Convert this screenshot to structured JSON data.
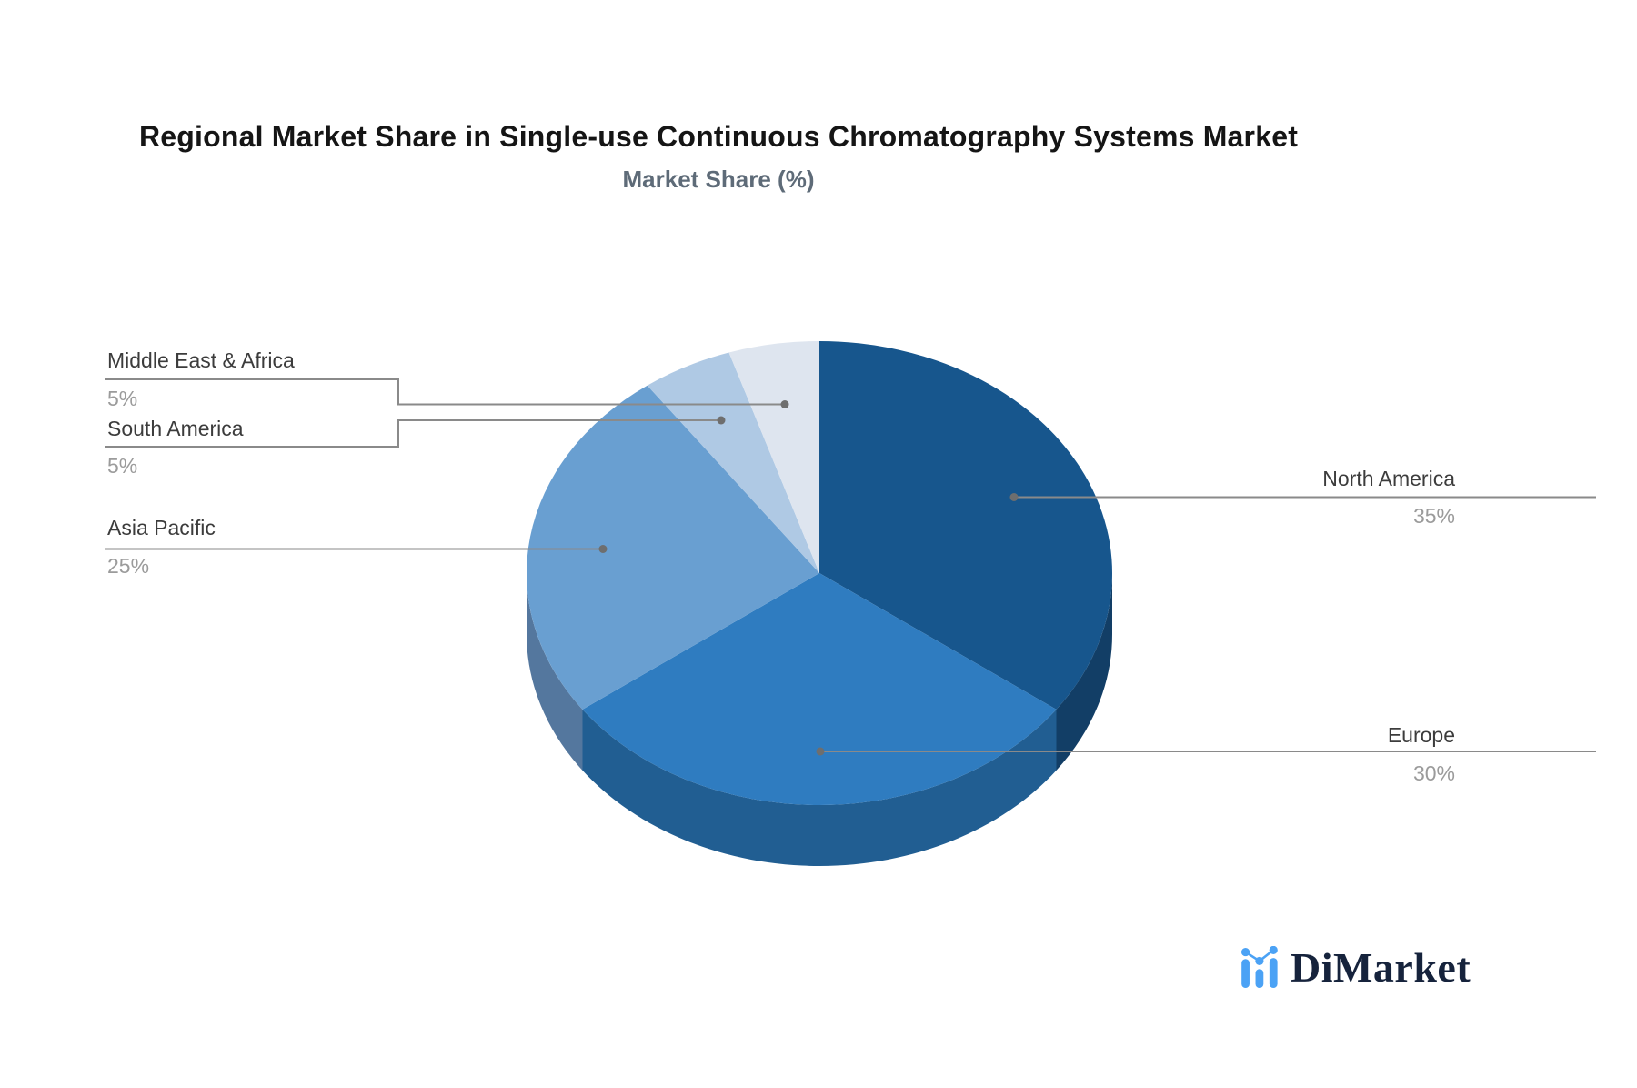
{
  "header": {
    "title": "Regional Market Share in Single-use Continuous Chromatography Systems Market",
    "subtitle": "Market Share (%)"
  },
  "brand": {
    "name": "DiMarket",
    "icon": "bar-chart-trend-icon",
    "icon_color": "#4BA2F5",
    "text_color": "#16233c"
  },
  "chart_data": {
    "type": "pie",
    "title": "Regional Market Share in Single-use Continuous Chromatography Systems Market",
    "subtitle": "Market Share (%)",
    "unit": "%",
    "style": "3d-pie",
    "start_angle": "12-oclock",
    "direction": "clockwise",
    "legend_position": "callout-labels",
    "callout_line_color": "#8a8a8a",
    "callout_dot_color": "#6e6e6e",
    "series": [
      {
        "label": "North America",
        "value": 35,
        "pct": "35%",
        "color": "#17568D",
        "side_color": "#123E66"
      },
      {
        "label": "Europe",
        "value": 30,
        "pct": "30%",
        "color": "#2F7CC0",
        "side_color": "#215E92"
      },
      {
        "label": "Asia Pacific",
        "value": 25,
        "pct": "25%",
        "color": "#699FD1",
        "side_color": "#54779E"
      },
      {
        "label": "South America",
        "value": 5,
        "pct": "5%",
        "color": "#AFC9E4"
      },
      {
        "label": "Middle East & Africa",
        "value": 5,
        "pct": "5%",
        "color": "#DEE5EF"
      }
    ]
  }
}
